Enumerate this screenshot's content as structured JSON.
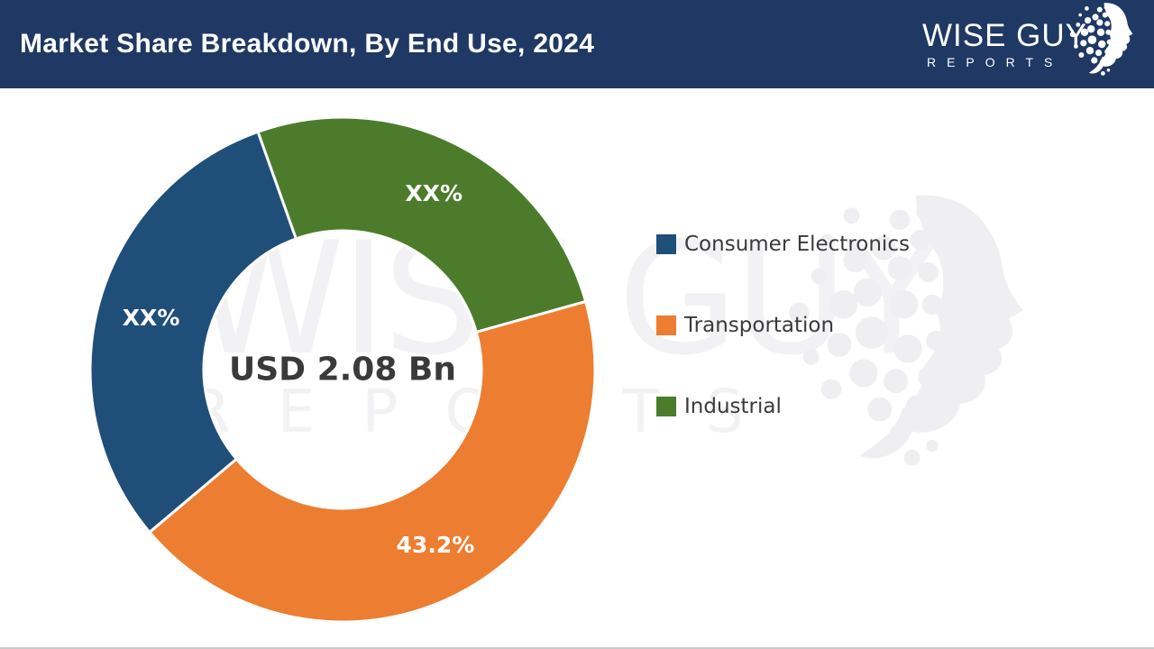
{
  "header": {
    "title": "Market Share Breakdown, By End Use, 2024",
    "logo": {
      "line1": "WISE GUY",
      "line2": "REPORTS"
    }
  },
  "watermark": {
    "line1": "WISE GUY",
    "line2": "REPORTS"
  },
  "chart_data": {
    "type": "pie",
    "subtype": "donut",
    "title": "Market Share Breakdown, By End Use, 2024",
    "center_label": "USD 2.08 Bn",
    "start_angle_deg": -19.6,
    "direction": "clockwise",
    "slices": [
      {
        "name": "Industrial",
        "label": "XX%",
        "value_pct": 26.1,
        "color": "#4C7C2B"
      },
      {
        "name": "Transportation",
        "label": "43.2%",
        "value_pct": 43.2,
        "color": "#ED7D31"
      },
      {
        "name": "Consumer Electronics",
        "label": "XX%",
        "value_pct": 30.7,
        "color": "#1F4E79"
      }
    ],
    "legend": [
      {
        "name": "Consumer Electronics",
        "color": "#1F4E79"
      },
      {
        "name": "Transportation",
        "color": "#ED7D31"
      },
      {
        "name": "Industrial",
        "color": "#4C7C2B"
      }
    ],
    "legend_position": "right"
  },
  "colors": {
    "header_bg": "#1F3864",
    "text_dark": "#3A3A3A",
    "slice_label": "#FFFFFF",
    "watermark": "#F2F2F4",
    "divider": "#C9C9C9"
  }
}
